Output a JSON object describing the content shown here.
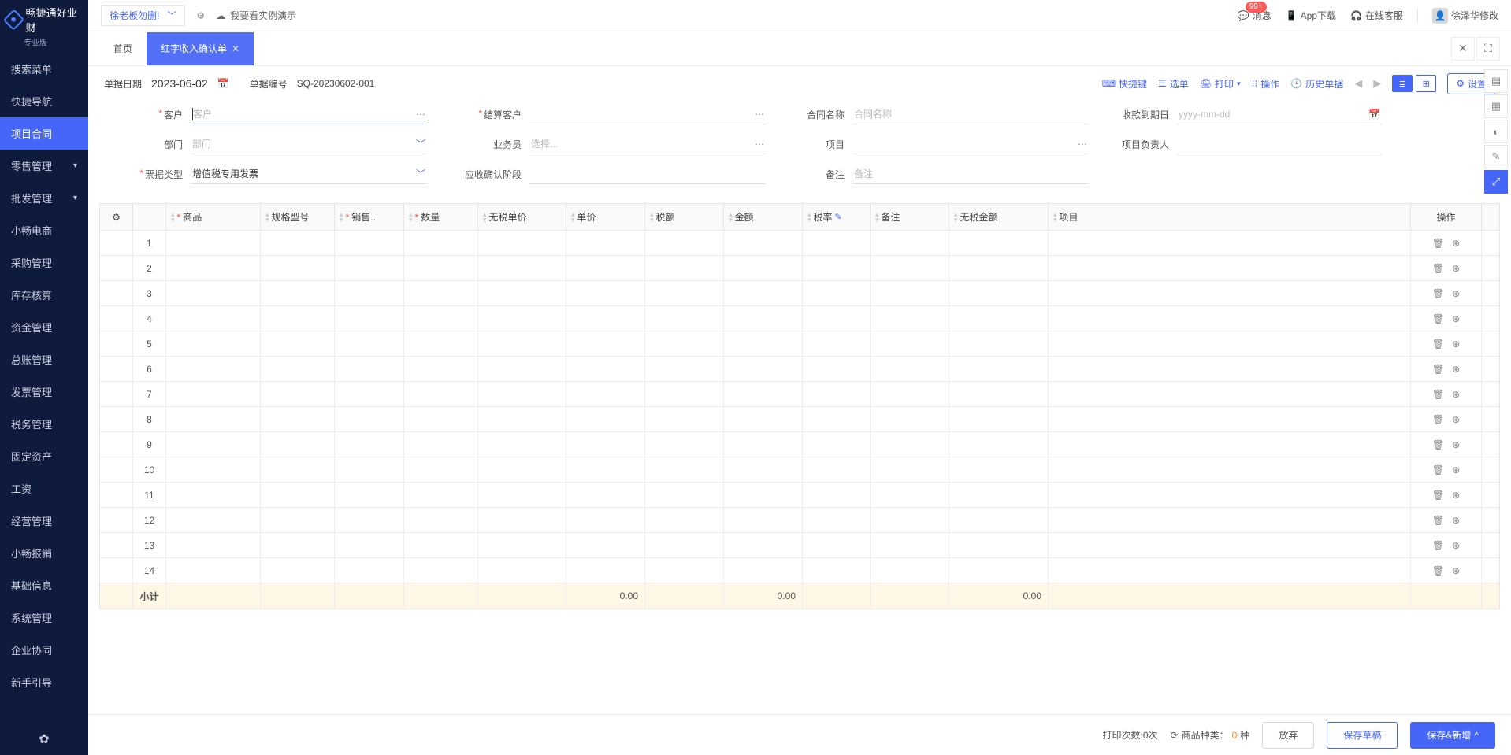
{
  "brand": {
    "name": "畅捷通好业财",
    "sub": "专业版"
  },
  "nav": [
    {
      "label": "搜索菜单",
      "caret": false
    },
    {
      "label": "快捷导航",
      "caret": false
    },
    {
      "label": "项目合同",
      "caret": false,
      "active": true
    },
    {
      "label": "零售管理",
      "caret": true
    },
    {
      "label": "批发管理",
      "caret": true
    },
    {
      "label": "小畅电商",
      "caret": false
    },
    {
      "label": "采购管理",
      "caret": false
    },
    {
      "label": "库存核算",
      "caret": false
    },
    {
      "label": "资金管理",
      "caret": false
    },
    {
      "label": "总账管理",
      "caret": false
    },
    {
      "label": "发票管理",
      "caret": false
    },
    {
      "label": "税务管理",
      "caret": false
    },
    {
      "label": "固定资产",
      "caret": false
    },
    {
      "label": "工资",
      "caret": false
    },
    {
      "label": "经营管理",
      "caret": false
    },
    {
      "label": "小畅报销",
      "caret": false
    },
    {
      "label": "基础信息",
      "caret": false
    },
    {
      "label": "系统管理",
      "caret": false
    },
    {
      "label": "企业协同",
      "caret": false
    },
    {
      "label": "新手引导",
      "caret": false
    }
  ],
  "topbar": {
    "selector": "徐老板勿删!",
    "demo": "我要看实例演示",
    "message": "消息",
    "badge": "99+",
    "download": "App下载",
    "support": "在线客服",
    "user": "徐泽华修改"
  },
  "tabs": [
    {
      "label": "首页",
      "closable": false,
      "active": false
    },
    {
      "label": "红字收入确认单",
      "closable": true,
      "active": true
    }
  ],
  "toolbar": {
    "date_label": "单据日期",
    "date": "2023-06-02",
    "no_label": "单据编号",
    "no": "SQ-20230602-001",
    "shortcut": "快捷键",
    "select": "选单",
    "print": "打印",
    "operate": "操作",
    "history": "历史单据",
    "settings": "设置"
  },
  "form": {
    "customer": {
      "label": "客户",
      "placeholder": "客户",
      "required": true
    },
    "settle": {
      "label": "结算客户",
      "required": true
    },
    "contract": {
      "label": "合同名称",
      "placeholder": "合同名称"
    },
    "due": {
      "label": "收款到期日",
      "placeholder": "yyyy-mm-dd"
    },
    "dept": {
      "label": "部门",
      "placeholder": "部门"
    },
    "salesman": {
      "label": "业务员",
      "placeholder": "选择..."
    },
    "project": {
      "label": "项目"
    },
    "pm": {
      "label": "项目负责人"
    },
    "invoice": {
      "label": "票据类型",
      "value": "增值税专用发票",
      "required": true
    },
    "stage": {
      "label": "应收确认阶段"
    },
    "remark": {
      "label": "备注",
      "placeholder": "备注"
    }
  },
  "table": {
    "columns": [
      {
        "label": "商品",
        "req": true,
        "w": "col-product",
        "align": "left"
      },
      {
        "label": "规格型号",
        "w": "col-spec",
        "align": "left"
      },
      {
        "label": "销售...",
        "req": true,
        "w": "col-sale",
        "align": "left"
      },
      {
        "label": "数量",
        "req": true,
        "w": "col-qty",
        "align": "left"
      },
      {
        "label": "无税单价",
        "w": "col-untax",
        "align": "left"
      },
      {
        "label": "单价",
        "w": "col-price",
        "align": "left"
      },
      {
        "label": "税额",
        "w": "col-tax",
        "align": "left"
      },
      {
        "label": "金额",
        "w": "col-amount",
        "align": "left"
      },
      {
        "label": "税率",
        "w": "col-rate",
        "align": "left",
        "edit": true
      },
      {
        "label": "备注",
        "w": "col-remark",
        "align": "left"
      },
      {
        "label": "无税金额",
        "w": "col-untaxamt",
        "align": "left"
      },
      {
        "label": "项目",
        "w": "col-proj",
        "align": "left"
      }
    ],
    "op_label": "操作",
    "rows": 14,
    "subtotal_label": "小计",
    "subtotal": {
      "price": "0.00",
      "amount": "0.00",
      "untaxamt": "0.00"
    }
  },
  "footer": {
    "print": "打印次数:0次",
    "sku_label": "商品种类：",
    "sku_val": "0",
    "sku_unit": "种",
    "discard": "放弃",
    "draft": "保存草稿",
    "save": "保存&新增"
  }
}
